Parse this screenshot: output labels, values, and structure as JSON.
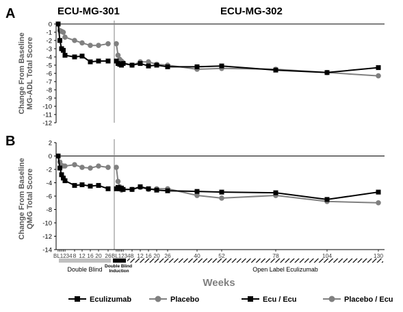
{
  "colors": {
    "ecu": "#000000",
    "placebo": "#808080",
    "double_blind_bar": "#c0c0c0",
    "axis": "#000000",
    "divider": "#808080"
  },
  "chart_data": [
    {
      "type": "line",
      "panel_label": "A",
      "study_labels": [
        "ECU-MG-301",
        "ECU-MG-302"
      ],
      "ylabel": [
        "Change From Baseline",
        "MG-ADL Total Score"
      ],
      "ylim": [
        -12,
        0
      ],
      "yticks": [
        0,
        -1,
        -2,
        -3,
        -4,
        -5,
        -6,
        -7,
        -8,
        -9,
        -10,
        -11,
        -12
      ],
      "series": [
        {
          "name": "Eculizumab",
          "phase": "ECU-MG-301",
          "marker": "square",
          "x": [
            "BL",
            "1",
            "2",
            "3",
            "4",
            "8",
            "12",
            "16",
            "20",
            "26"
          ],
          "values": [
            0,
            -2.0,
            -3.0,
            -3.2,
            -3.8,
            -4.0,
            -3.9,
            -4.6,
            -4.5,
            -4.5
          ]
        },
        {
          "name": "Placebo",
          "phase": "ECU-MG-301",
          "marker": "circle",
          "x": [
            "BL",
            "1",
            "2",
            "3",
            "4",
            "8",
            "12",
            "16",
            "20",
            "26"
          ],
          "values": [
            0,
            -0.8,
            -0.9,
            -1.0,
            -1.6,
            -2.0,
            -2.3,
            -2.6,
            -2.6,
            -2.4
          ]
        },
        {
          "name": "Ecu / Ecu",
          "phase": "ECU-MG-302",
          "marker": "square",
          "x": [
            "BL",
            "1",
            "2",
            "3",
            "4",
            "8",
            "12",
            "16",
            "20",
            "26",
            "40",
            "52",
            "78",
            "104",
            "130"
          ],
          "values": [
            -4.5,
            -4.8,
            -4.9,
            -5.0,
            -4.8,
            -5.0,
            -4.8,
            -5.1,
            -5.0,
            -5.2,
            -5.2,
            -5.1,
            -5.6,
            -5.9,
            -5.3
          ]
        },
        {
          "name": "Placebo / Ecu",
          "phase": "ECU-MG-302",
          "marker": "circle",
          "x": [
            "BL",
            "1",
            "2",
            "3",
            "4",
            "8",
            "12",
            "16",
            "20",
            "26",
            "40",
            "52",
            "78",
            "104",
            "130"
          ],
          "values": [
            -2.4,
            -3.8,
            -4.3,
            -4.5,
            -4.7,
            -5.0,
            -4.6,
            -4.6,
            -4.9,
            -5.0,
            -5.5,
            -5.4,
            -5.5,
            -5.9,
            -6.3
          ]
        }
      ]
    },
    {
      "type": "line",
      "panel_label": "B",
      "ylabel": [
        "Change From Baseline",
        "QMG Total Score"
      ],
      "ylim": [
        -14,
        2
      ],
      "yticks": [
        2,
        0,
        -2,
        -4,
        -6,
        -8,
        -10,
        -12,
        -14
      ],
      "series": [
        {
          "name": "Eculizumab",
          "phase": "ECU-MG-301",
          "marker": "square",
          "x": [
            "BL",
            "1",
            "2",
            "3",
            "4",
            "8",
            "12",
            "16",
            "20",
            "26"
          ],
          "values": [
            0,
            -1.8,
            -2.8,
            -3.3,
            -3.7,
            -4.4,
            -4.3,
            -4.5,
            -4.4,
            -4.9
          ]
        },
        {
          "name": "Placebo",
          "phase": "ECU-MG-301",
          "marker": "circle",
          "x": [
            "BL",
            "1",
            "2",
            "3",
            "4",
            "8",
            "12",
            "16",
            "20",
            "26"
          ],
          "values": [
            0,
            -0.9,
            -1.4,
            -1.5,
            -1.5,
            -1.3,
            -1.7,
            -1.8,
            -1.5,
            -1.7
          ]
        },
        {
          "name": "Ecu / Ecu",
          "phase": "ECU-MG-302",
          "marker": "square",
          "x": [
            "BL",
            "1",
            "2",
            "3",
            "4",
            "8",
            "12",
            "16",
            "20",
            "26",
            "40",
            "52",
            "78",
            "104",
            "130"
          ],
          "values": [
            -4.9,
            -4.7,
            -4.9,
            -4.8,
            -5.0,
            -5.0,
            -4.6,
            -4.9,
            -5.1,
            -5.2,
            -5.3,
            -5.4,
            -5.5,
            -6.5,
            -5.4
          ]
        },
        {
          "name": "Placebo / Ecu",
          "phase": "ECU-MG-302",
          "marker": "circle",
          "x": [
            "BL",
            "1",
            "2",
            "3",
            "4",
            "8",
            "12",
            "16",
            "20",
            "26",
            "40",
            "52",
            "78",
            "104",
            "130"
          ],
          "values": [
            -1.7,
            -3.8,
            -4.6,
            -5.1,
            -5.0,
            -5.0,
            -4.7,
            -5.0,
            -4.9,
            -4.9,
            -5.9,
            -6.3,
            -5.9,
            -6.8,
            -7.0
          ]
        }
      ]
    }
  ],
  "x_axis": {
    "ticks_301": [
      "BL",
      "1",
      "2",
      "3",
      "4",
      "8",
      "12",
      "16",
      "20",
      "26"
    ],
    "ticks_302": [
      "BL",
      "1",
      "2",
      "3",
      "4",
      "8",
      "12",
      "16",
      "20",
      "26",
      "40",
      "52",
      "78",
      "104",
      "130"
    ],
    "tick_text": {
      "bl_301": "BL1234",
      "bl_302": "BL1234"
    },
    "xlabel": "Weeks",
    "periods": {
      "double_blind": "Double Blind",
      "double_blind_induction": "Double Blind Induction",
      "open_label": "Open Label Eculizumab"
    }
  },
  "legend": {
    "items": [
      {
        "label": "Eculizumab",
        "marker": "square",
        "color_key": "ecu"
      },
      {
        "label": "Placebo",
        "marker": "circle",
        "color_key": "placebo"
      },
      {
        "label": "Ecu / Ecu",
        "marker": "square",
        "color_key": "ecu"
      },
      {
        "label": "Placebo / Ecu",
        "marker": "circle",
        "color_key": "placebo"
      }
    ]
  }
}
